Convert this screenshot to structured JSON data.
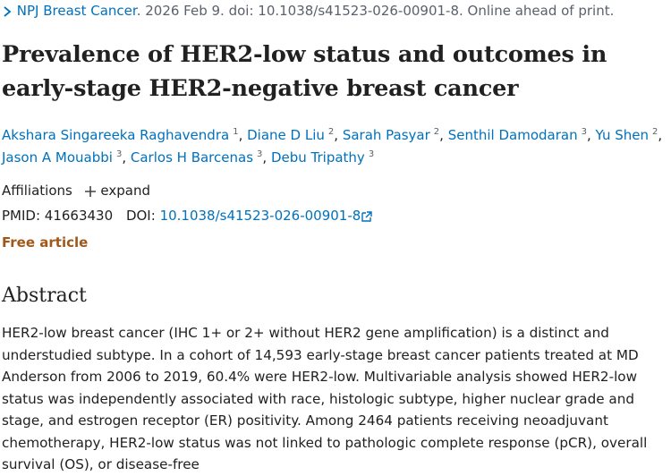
{
  "journal": {
    "name": "NPJ Breast Cancer",
    "citation": ". 2026 Feb 9. doi: 10.1038/s41523-026-00901-8. Online ahead of print."
  },
  "title": "Prevalence of HER2-low status and outcomes in early-stage HER2-negative breast cancer",
  "authors": [
    {
      "name": "Akshara Singareeka Raghavendra",
      "aff": "1",
      "sep": ","
    },
    {
      "name": "Diane D Liu",
      "aff": "2",
      "sep": ","
    },
    {
      "name": "Sarah Pasyar",
      "aff": "2",
      "sep": ","
    },
    {
      "name": "Senthil Damodaran",
      "aff": "3",
      "sep": ","
    },
    {
      "name": "Yu Shen",
      "aff": "2",
      "sep": ","
    },
    {
      "name": "Jason A Mouabbi",
      "aff": "3",
      "sep": ","
    },
    {
      "name": "Carlos H Barcenas",
      "aff": "3",
      "sep": ","
    },
    {
      "name": "Debu Tripathy",
      "aff": "3"
    }
  ],
  "affiliations": {
    "label": "Affiliations",
    "toggle": "expand"
  },
  "ids": {
    "pmid_label": "PMID:",
    "pmid": "41663430",
    "doi_label": "DOI:",
    "doi": "10.1038/s41523-026-00901-8"
  },
  "free": "Free article",
  "abstract": {
    "heading": "Abstract",
    "text": "HER2-low breast cancer (IHC 1+ or 2+ without HER2 gene amplification) is a distinct and understudied subtype. In a cohort of 14,593 early-stage breast cancer patients treated at MD Anderson from 2006 to 2019, 60.4% were HER2-low. Multivariable analysis showed HER2-low status was independently associated with race, histologic subtype, higher nuclear grade and stage, and estrogen receptor (ER) positivity. Among 2464 patients receiving neoadjuvant chemotherapy, HER2-low status was not linked to pathologic complete response (pCR), overall survival (OS), or disease-free"
  }
}
